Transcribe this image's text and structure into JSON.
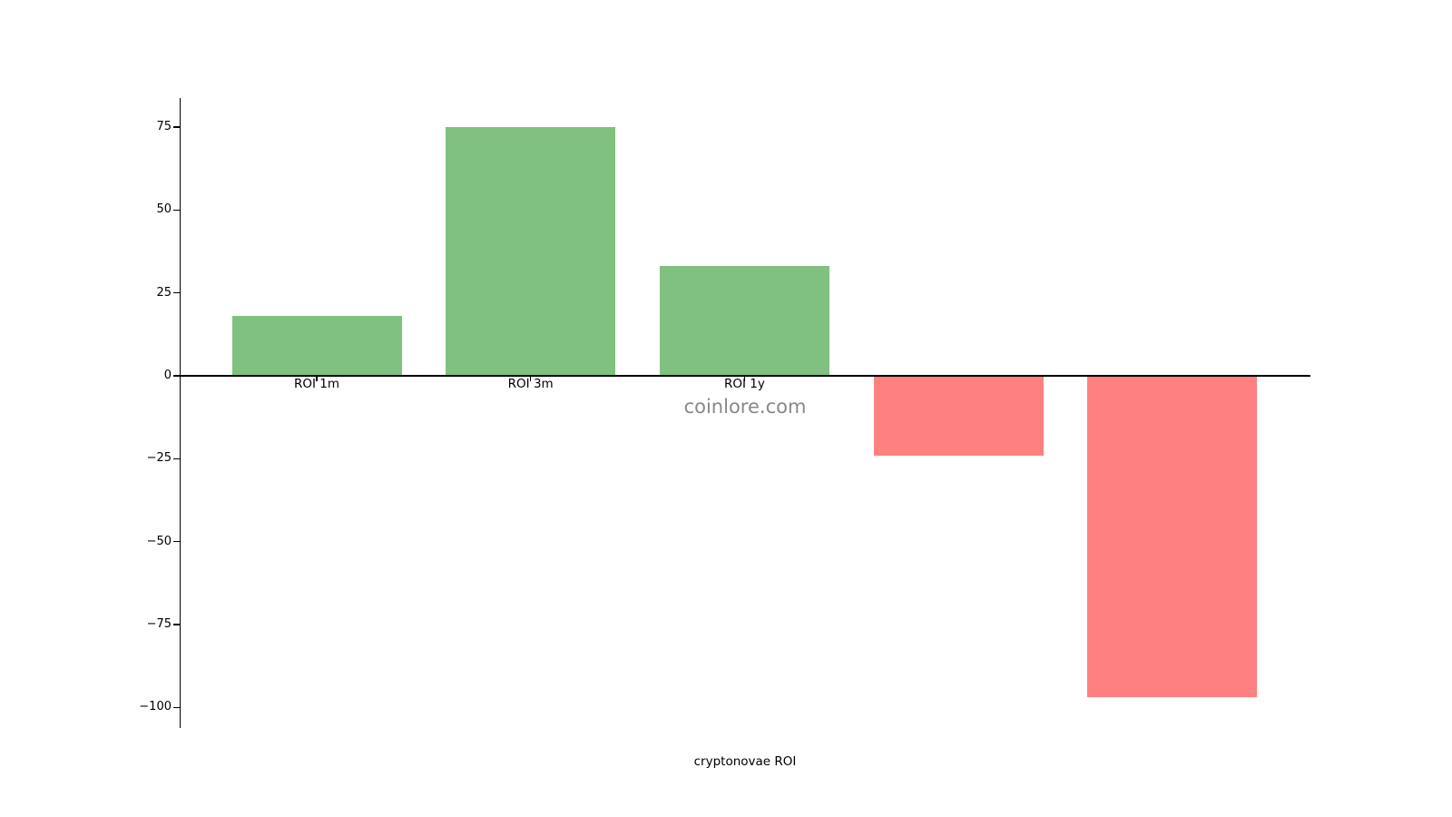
{
  "figure": {
    "watermark": "coinlore.com",
    "watermark_color": "#888888",
    "background": "#ffffff"
  },
  "chart_data": {
    "type": "bar",
    "title": "",
    "xlabel": "cryptonovae ROI",
    "ylabel": "",
    "categories": [
      "ROI 1m",
      "ROI 3m",
      "ROI 1y",
      "",
      ""
    ],
    "values": [
      18,
      75,
      33,
      -24,
      -97
    ],
    "positive_color": "#80c080",
    "negative_color": "#ff8080",
    "axis_color": "#000000",
    "yticks": [
      75,
      50,
      25,
      0,
      -25,
      -50,
      -75,
      -100
    ],
    "ytick_labels": [
      "75",
      "50",
      "25",
      "0",
      "−25",
      "−50",
      "−75",
      "−100"
    ],
    "ylim": [
      -106,
      84
    ],
    "grid": false,
    "legend": "none"
  }
}
